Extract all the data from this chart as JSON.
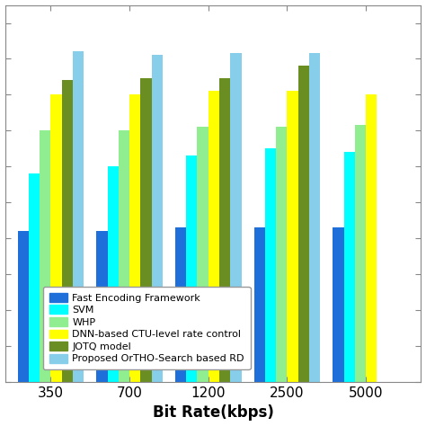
{
  "categories": [
    "350",
    "700",
    "1200",
    "2500",
    "5000"
  ],
  "series": {
    "Fast Encoding Framework": [
      0.42,
      0.42,
      0.43,
      0.43,
      0.43
    ],
    "SVM": [
      0.58,
      0.6,
      0.63,
      0.65,
      0.64
    ],
    "WHP": [
      0.7,
      0.7,
      0.71,
      0.71,
      0.715
    ],
    "DNN-based CTU-level rate control": [
      0.8,
      0.8,
      0.81,
      0.81,
      0.8
    ],
    "JOTQ model": [
      0.84,
      0.845,
      0.845,
      0.88,
      -1
    ],
    "Proposed OrTHO-Search based RD": [
      0.92,
      0.91,
      0.915,
      0.915,
      -1
    ]
  },
  "colors": {
    "Fast Encoding Framework": "#1E6FD9",
    "SVM": "#00FFFF",
    "WHP": "#90EE90",
    "DNN-based CTU-level rate control": "#FFFF00",
    "JOTQ model": "#6B8E23",
    "Proposed OrTHO-Search based RD": "#87CEEB"
  },
  "xlabel": "Bit Rate(kbps)",
  "ylim": [
    0.0,
    1.05
  ],
  "bar_width": 0.14,
  "legend_entries": [
    "Fast Encoding Framework",
    "SVM",
    "WHP",
    "DNN-based CTU-level rate control",
    "JOTQ model",
    "Proposed OrTHO-Search based RD"
  ]
}
